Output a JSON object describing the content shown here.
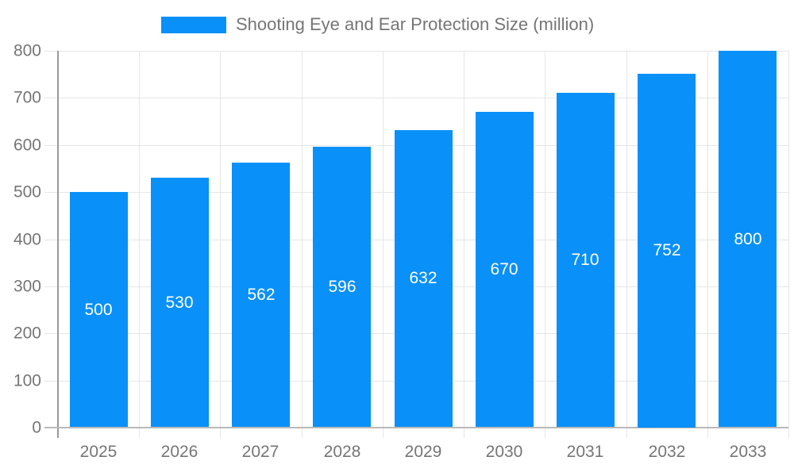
{
  "chart_data": {
    "type": "bar",
    "title": "Shooting Eye and Ear Protection Size (million)",
    "categories": [
      "2025",
      "2026",
      "2027",
      "2028",
      "2029",
      "2030",
      "2031",
      "2032",
      "2033"
    ],
    "values": [
      500,
      530,
      562,
      596,
      632,
      670,
      710,
      752,
      800
    ],
    "series": [
      {
        "name": "Shooting Eye and Ear Protection Size (million)",
        "values": [
          500,
          530,
          562,
          596,
          632,
          670,
          710,
          752,
          800
        ]
      }
    ],
    "xlabel": "",
    "ylabel": "",
    "ylim": [
      0,
      800
    ],
    "yticks": [
      0,
      100,
      200,
      300,
      400,
      500,
      600,
      700,
      800
    ],
    "grid": true,
    "legend_position": "top",
    "bar_labels_visible": true
  },
  "legend": {
    "label": "Shooting Eye and Ear Protection Size (million)",
    "swatch_color": "#0990f9"
  },
  "colors": {
    "bar": "#0990f9",
    "bar_value_text": "#ffffff",
    "axis_text": "#757575",
    "grid_line": "#e6e6e6",
    "y_axis_line": "#999999",
    "x_axis_line": "#b9b9b9",
    "background": "#ffffff"
  }
}
